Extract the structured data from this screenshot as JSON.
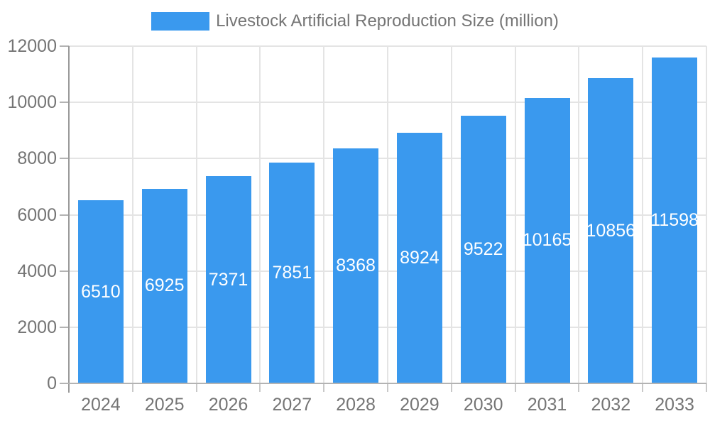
{
  "legend": {
    "label": "Livestock Artificial Reproduction Size (million)"
  },
  "colors": {
    "bar": "#3A99EE",
    "axis_text": "#757575",
    "value_label_text": "#FFFFFF",
    "grid_line": "#E4E4E4",
    "y_axis_line": "#999999",
    "x_axis_line": "#B3B3B3",
    "tick_mark": "#C9C9C9"
  },
  "chart_data": {
    "type": "bar",
    "title": "Livestock Artificial Reproduction Size (million)",
    "categories": [
      "2024",
      "2025",
      "2026",
      "2027",
      "2028",
      "2029",
      "2030",
      "2031",
      "2032",
      "2033"
    ],
    "values": [
      6510,
      6925,
      7371,
      7851,
      8368,
      8924,
      9522,
      10165,
      10856,
      11598
    ],
    "xlabel": "",
    "ylabel": "",
    "ylim": [
      0,
      12000
    ],
    "yticks": [
      0,
      2000,
      4000,
      6000,
      8000,
      10000,
      12000
    ],
    "grid": true,
    "bar_labels": true,
    "bar_label_position": "center-inside",
    "legend_position": "top-center"
  }
}
